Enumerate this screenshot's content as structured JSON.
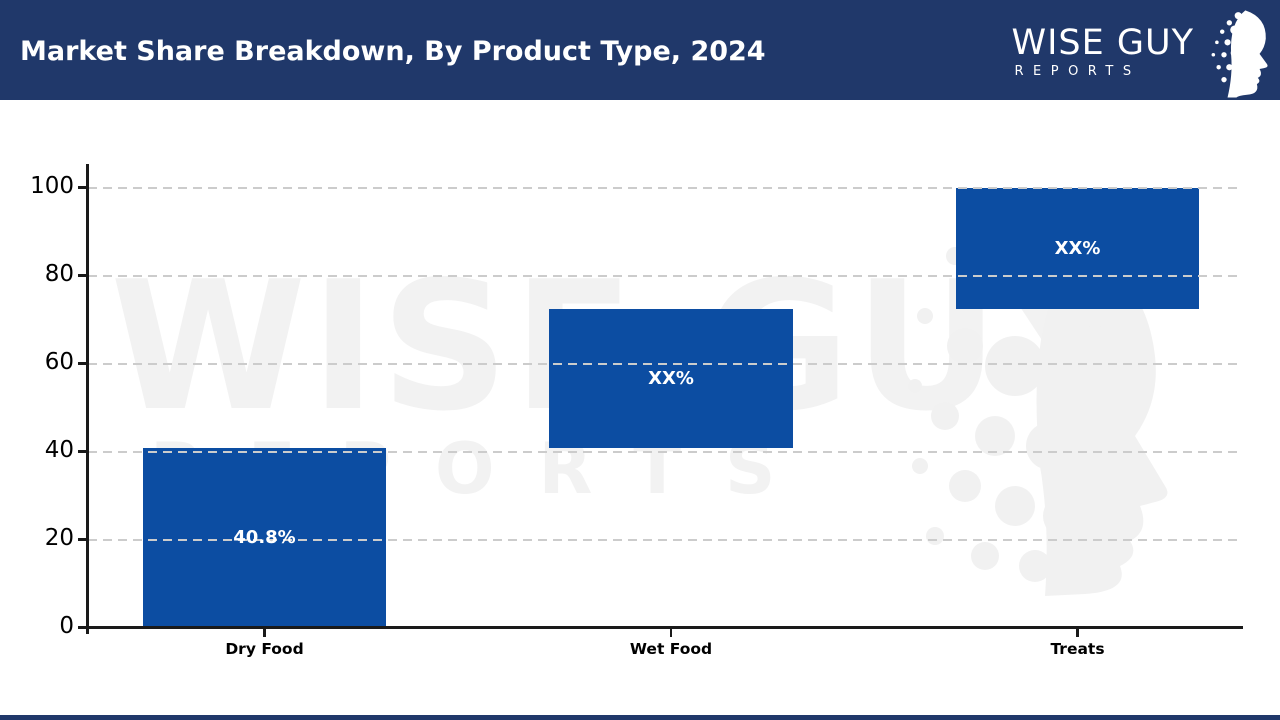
{
  "header": {
    "title": "Market Share Breakdown, By Product Type, 2024",
    "logo": {
      "line1": "WISE GUY",
      "line2": "REPORTS"
    }
  },
  "watermark": {
    "line1": "WISE GUY",
    "line2": "REPORTS"
  },
  "colors": {
    "header_bg": "#20386a",
    "bar_blue": "#0c4da2",
    "gridline": "#cccccc",
    "watermark_gray": "#f2f2f2",
    "label_white": "#ffffff"
  },
  "chart_data": {
    "type": "bar",
    "subtype": "waterfall-stacked",
    "title": "Market Share Breakdown, By Product Type, 2024",
    "categories": [
      "Dry Food",
      "Wet Food",
      "Treats"
    ],
    "segments": [
      {
        "category": "Dry Food",
        "start": 0,
        "end": 40.8,
        "value": 40.8,
        "label": "40.8%"
      },
      {
        "category": "Wet Food",
        "start": 40.8,
        "end": 72.5,
        "value": 31.7,
        "label": "XX%"
      },
      {
        "category": "Treats",
        "start": 72.5,
        "end": 100,
        "value": 27.5,
        "label": "XX%"
      }
    ],
    "bar_labels": [
      "40.8%",
      "XX%",
      "XX%"
    ],
    "xlabel": "",
    "ylabel": "",
    "ylim": [
      0,
      100
    ],
    "yticks": [
      0,
      20,
      40,
      60,
      80,
      100
    ],
    "grid": "horizontal dashed, drawn over bars",
    "legend": "none",
    "bar_color": "#0c4da2"
  },
  "footer": {}
}
